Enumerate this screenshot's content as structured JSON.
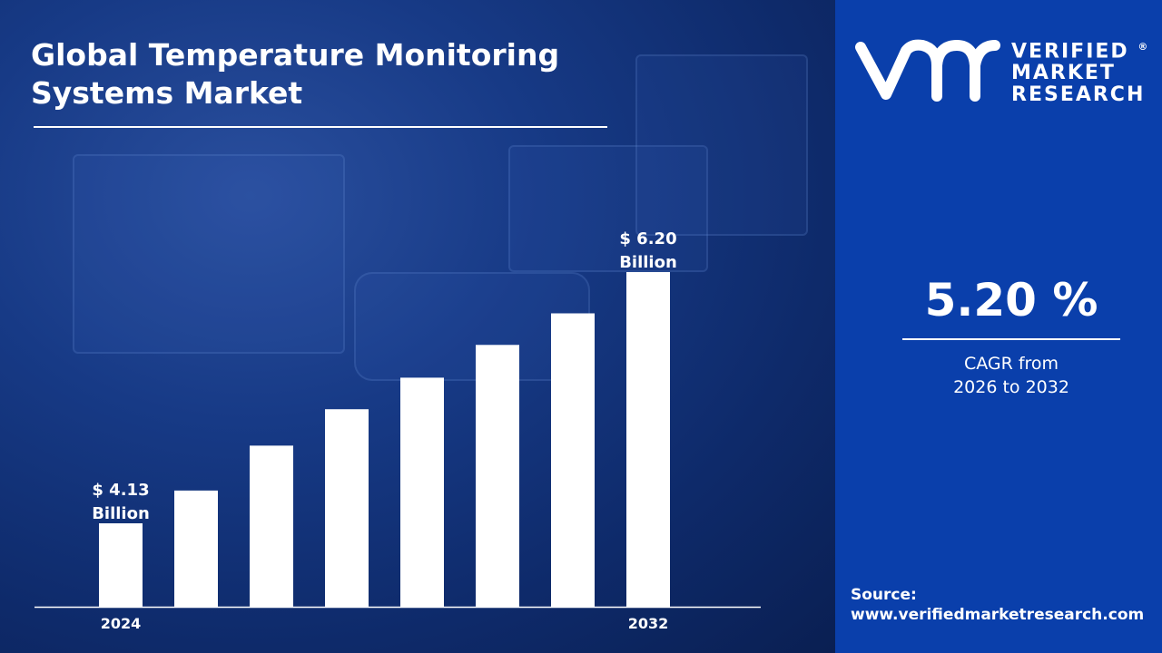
{
  "title_line1": "Global Temperature Monitoring",
  "title_line2": "Systems Market",
  "brand": {
    "line1": "VERIFIED",
    "line2": "MARKET",
    "line3": "RESEARCH",
    "registered": "®",
    "logo_mark": "vmr",
    "panel_color": "#0a3fab"
  },
  "cagr": {
    "value": "5.20 %",
    "label_line1": "CAGR from",
    "label_line2": "2026 to 2032"
  },
  "source": {
    "label": "Source:",
    "url": "www.verifiedmarketresearch.com"
  },
  "chart_data": {
    "type": "bar",
    "title": "Global Temperature Monitoring Systems Market",
    "categories": [
      "2024",
      "",
      "",
      "",
      "",
      "",
      "",
      "2032"
    ],
    "values": [
      4.13,
      4.4,
      4.77,
      5.07,
      5.33,
      5.6,
      5.86,
      6.2
    ],
    "unit": "$ Billion",
    "data_labels": [
      {
        "index": 0,
        "line1": "$ 4.13",
        "line2": "Billion"
      },
      {
        "index": 7,
        "line1": "$ 6.20",
        "line2": "Billion"
      }
    ],
    "bar_color": "#ffffff",
    "grid": false,
    "legend": "none"
  }
}
